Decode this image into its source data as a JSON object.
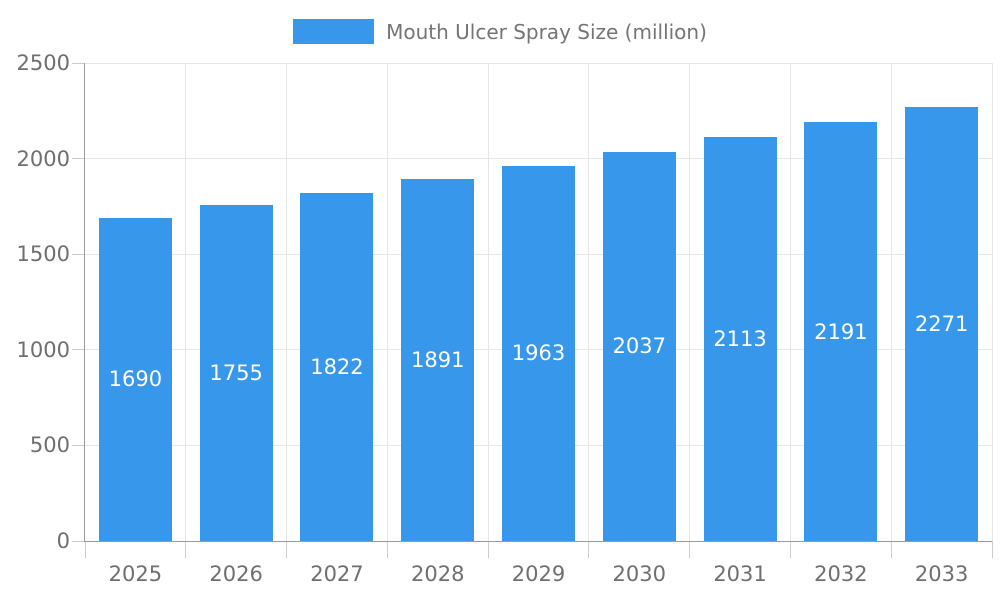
{
  "chart_data": {
    "type": "bar",
    "title": "Mouth Ulcer Spray Size (million)",
    "categories": [
      "2025",
      "2026",
      "2027",
      "2028",
      "2029",
      "2030",
      "2031",
      "2032",
      "2033"
    ],
    "series": [
      {
        "name": "Mouth Ulcer Spray Size (million)",
        "values": [
          1690,
          1755,
          1822,
          1891,
          1963,
          2037,
          2113,
          2191,
          2271
        ]
      }
    ],
    "value_labels": [
      "1690",
      "1755",
      "1822",
      "1891",
      "1963",
      "2037",
      "2113",
      "2191",
      "2271"
    ],
    "xlabel": "",
    "ylabel": "",
    "ylim": [
      0,
      2500
    ],
    "y_ticks": [
      0,
      500,
      1000,
      1500,
      2000,
      2500
    ],
    "grid": "both",
    "legend_position": "top",
    "colors": {
      "bar": "#3797EB",
      "value_label": "#ffffff",
      "gridline": "#e6e6e6",
      "tick": "#cccccc",
      "axis_line": "#9a9a9a",
      "axis_text": "#6f6f6f",
      "legend_text": "#757575"
    }
  },
  "legend": {
    "label": "Mouth Ulcer Spray Size (million)"
  }
}
